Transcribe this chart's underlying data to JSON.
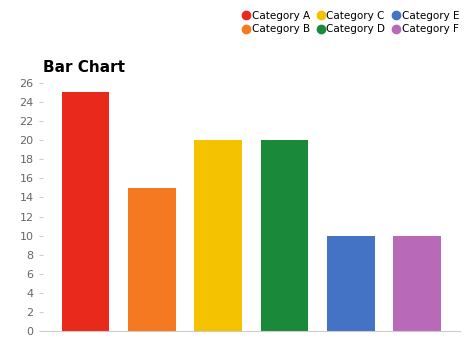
{
  "title": "Bar Chart",
  "categories": [
    "Category A",
    "Category B",
    "Category C",
    "Category D",
    "Category E",
    "Category F"
  ],
  "values": [
    25,
    15,
    20,
    20,
    10,
    10
  ],
  "bar_colors": [
    "#e8291c",
    "#f47920",
    "#f5c200",
    "#1a8a3a",
    "#4472c4",
    "#b86ab8"
  ],
  "legend_colors": [
    "#e8291c",
    "#f47920",
    "#f5c200",
    "#1a8a3a",
    "#4472c4",
    "#b86ab8"
  ],
  "ylim": [
    0,
    26
  ],
  "yticks": [
    0,
    2,
    4,
    6,
    8,
    10,
    12,
    14,
    16,
    18,
    20,
    22,
    24,
    26
  ],
  "title_fontsize": 11,
  "tick_fontsize": 8,
  "legend_fontsize": 7.5,
  "background_color": "#ffffff",
  "bar_width": 0.72
}
